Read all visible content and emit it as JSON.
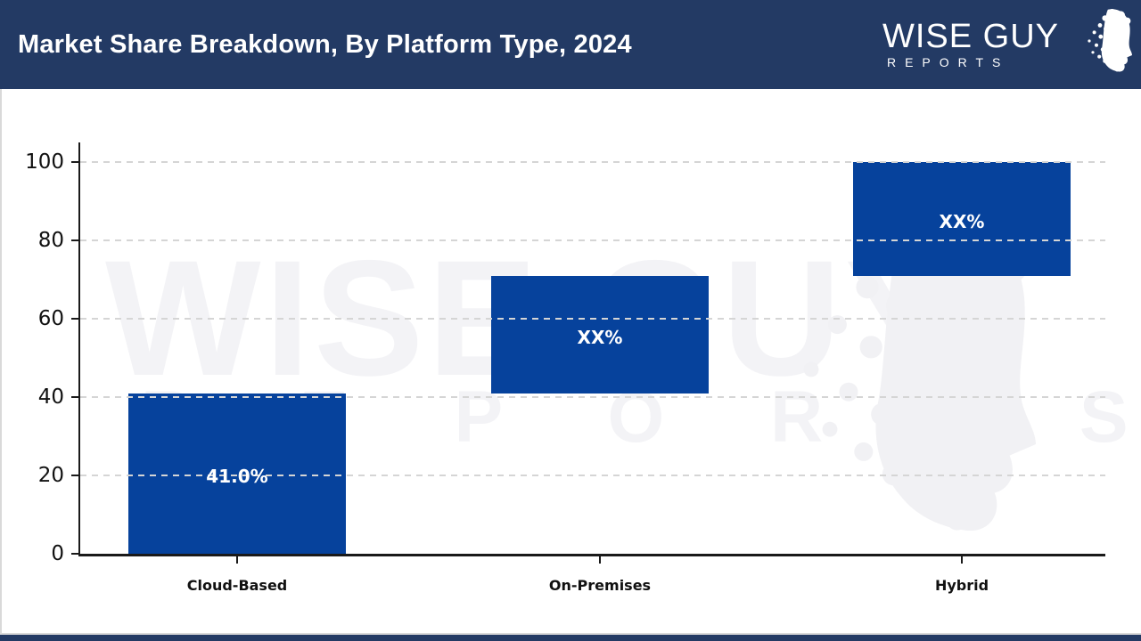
{
  "header": {
    "title": "Market Share Breakdown, By Platform Type, 2024",
    "bg_color": "#233a64",
    "logo": {
      "line1": "WISE GUY",
      "line2": "REPORTS"
    }
  },
  "watermark": {
    "line1": "WISE GUY",
    "line2": "R E P O R T S"
  },
  "chart_data": {
    "type": "bar",
    "subtype": "waterfall",
    "title": "Market Share Breakdown, By Platform Type, 2024",
    "categories": [
      "Cloud-Based",
      "On-Premises",
      "Hybrid"
    ],
    "bars": [
      {
        "category": "Cloud-Based",
        "start": 0,
        "end": 41,
        "label": "41.0%"
      },
      {
        "category": "On-Premises",
        "start": 41,
        "end": 71,
        "label": "XX%"
      },
      {
        "category": "Hybrid",
        "start": 71,
        "end": 100,
        "label": "XX%"
      }
    ],
    "yticks": [
      0,
      20,
      40,
      60,
      80,
      100
    ],
    "ylim": [
      0,
      105.7
    ],
    "xlabel": "",
    "ylabel": "",
    "grid": "horizontal-dashed-over-bars",
    "legend": "none",
    "bar_color": "#06429c",
    "grid_color": "#d5d5d5",
    "axis_color": "#1a1a1a",
    "bar_label_color": "#ffffff"
  },
  "footer": {
    "bar_color": "#233a64"
  }
}
